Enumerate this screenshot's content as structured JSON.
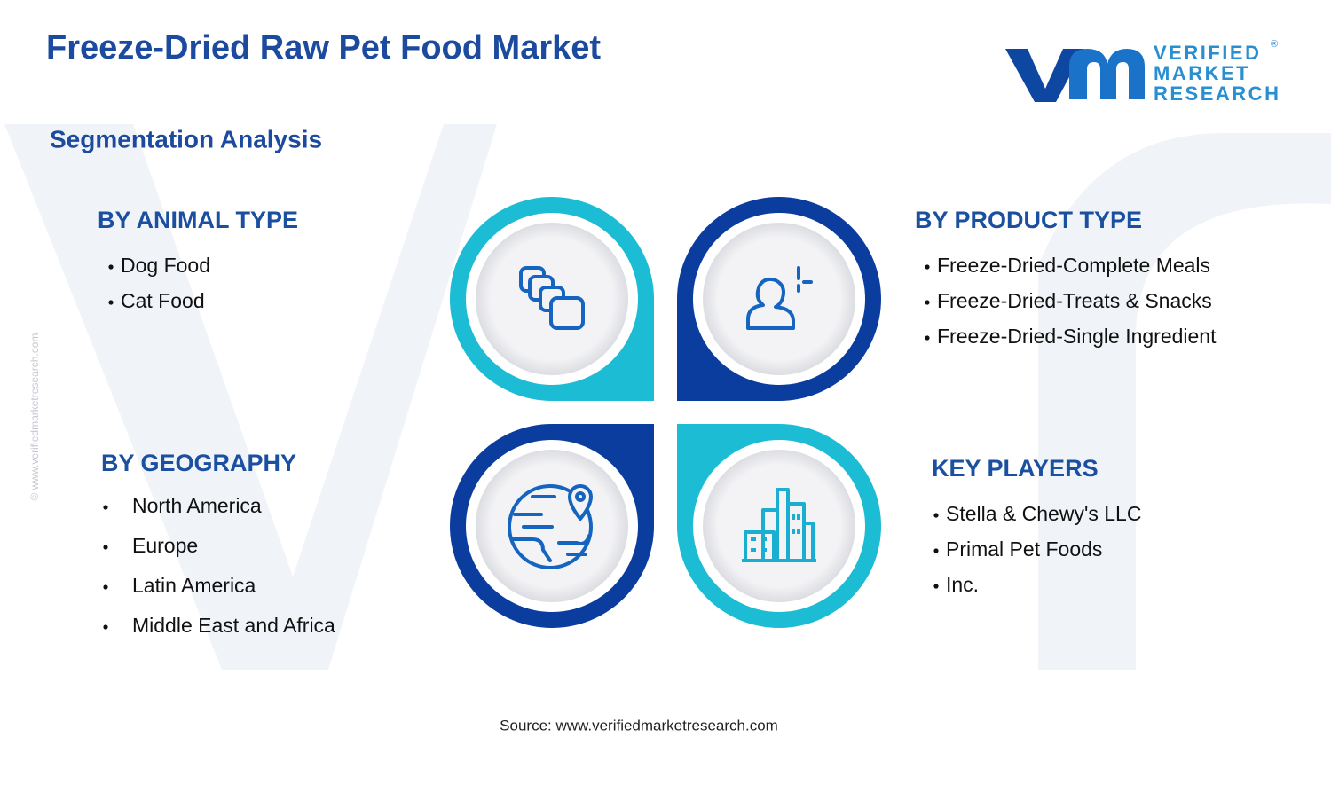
{
  "header": {
    "title": "Freeze-Dried Raw Pet Food Market",
    "logo_lines": [
      "VERIFIED",
      "MARKET",
      "RESEARCH"
    ],
    "logo_mark": "®"
  },
  "subtitle": "Segmentation Analysis",
  "segments": [
    {
      "heading": "BY ANIMAL TYPE",
      "items": [
        "Dog Food",
        "Cat Food"
      ]
    },
    {
      "heading": "BY PRODUCT TYPE",
      "items": [
        "Freeze-Dried-Complete Meals",
        "Freeze-Dried-Treats & Snacks",
        "Freeze-Dried-Single Ingredient"
      ]
    },
    {
      "heading": "BY GEOGRAPHY",
      "items": [
        "North America",
        "Europe",
        "Latin America",
        "Middle East and Africa"
      ]
    },
    {
      "heading": "KEY PLAYERS",
      "items": [
        "Stella & Chewy's LLC",
        "Primal Pet Foods",
        "Inc."
      ]
    }
  ],
  "watermark": "© www.verifiedmarketresearch.com",
  "source": "Source: www.verifiedmarketresearch.com"
}
